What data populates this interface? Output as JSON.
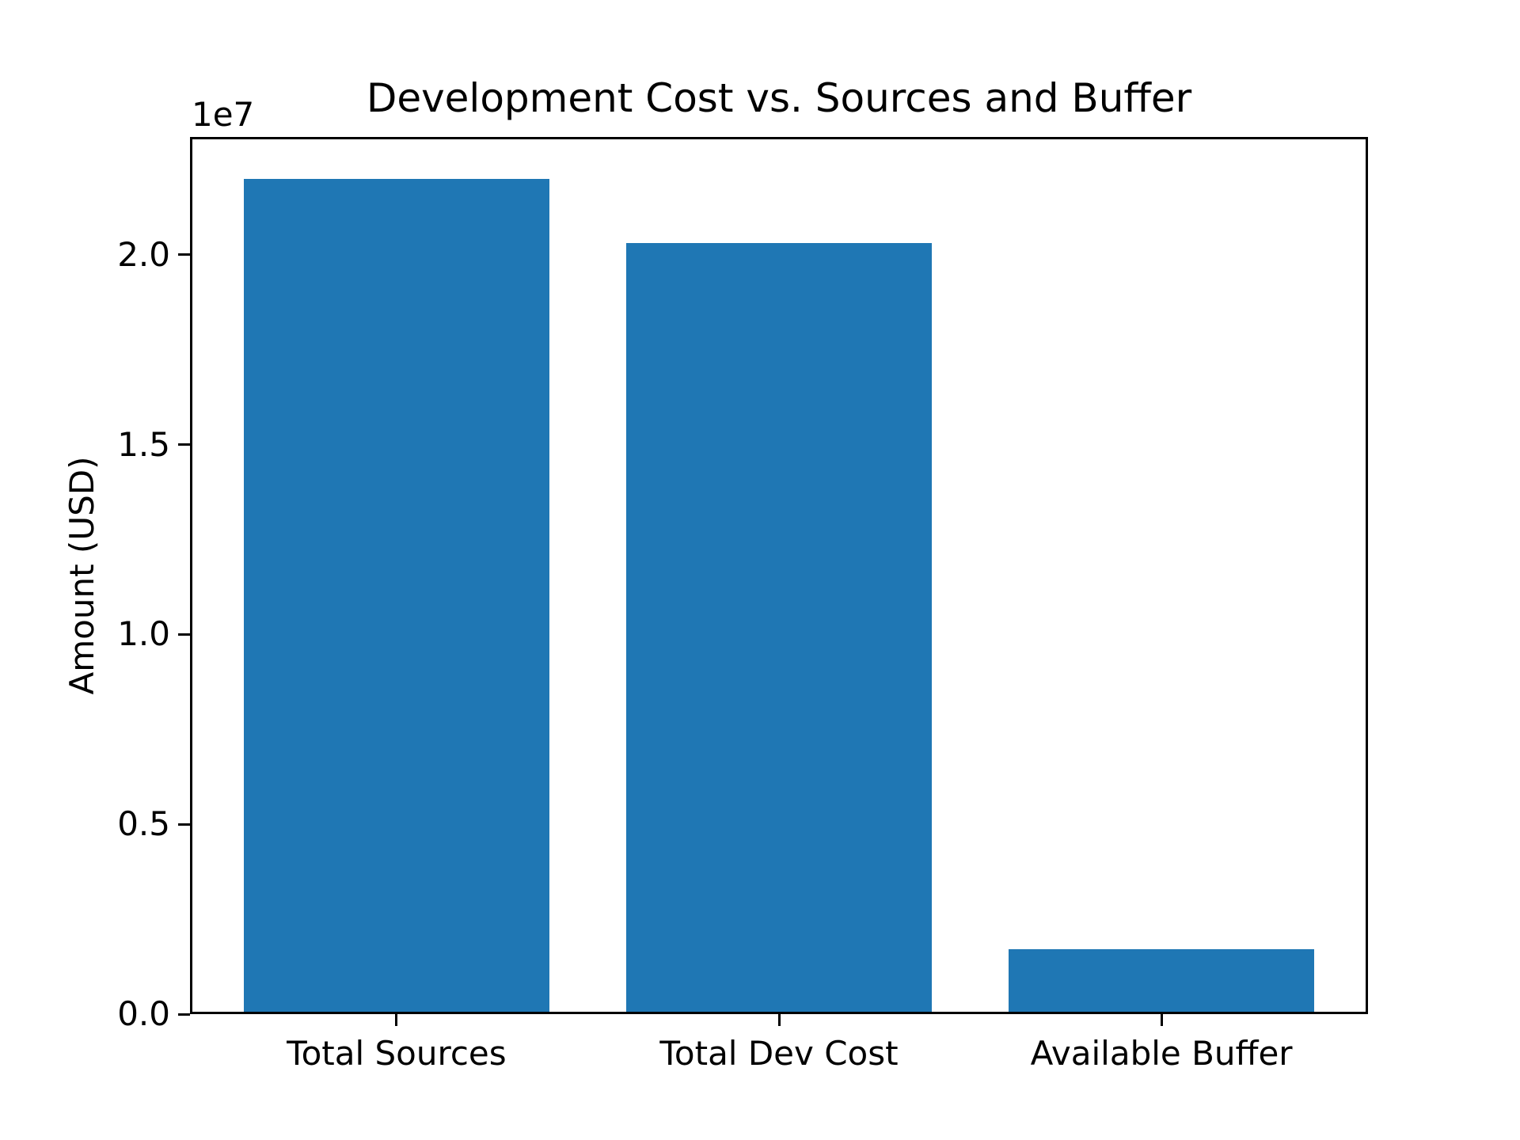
{
  "figure": {
    "title": "Development Cost vs. Sources and Buffer",
    "y_offset_text": "1e7",
    "ylabel": "Amount (USD)"
  },
  "chart_data": {
    "type": "bar",
    "title": "Development Cost vs. Sources and Buffer",
    "categories": [
      "Total Sources",
      "Total Dev Cost",
      "Available Buffer"
    ],
    "values": [
      22000000,
      20300000,
      1700000
    ],
    "xlabel": "",
    "ylabel": "Amount (USD)",
    "ylim": [
      0,
      23100000
    ],
    "yticks": {
      "values": [
        0,
        5000000,
        10000000,
        15000000,
        20000000
      ],
      "labels": [
        "0.0",
        "0.5",
        "1.0",
        "1.5",
        "2.0"
      ]
    },
    "y_offset_text": "1e7",
    "bar_color": "#1f77b4",
    "axis_color": "#000000",
    "background_color": "#ffffff",
    "grid": false,
    "legend": null,
    "bar_width_fraction": 0.8,
    "x_margin_units": 0.54
  }
}
